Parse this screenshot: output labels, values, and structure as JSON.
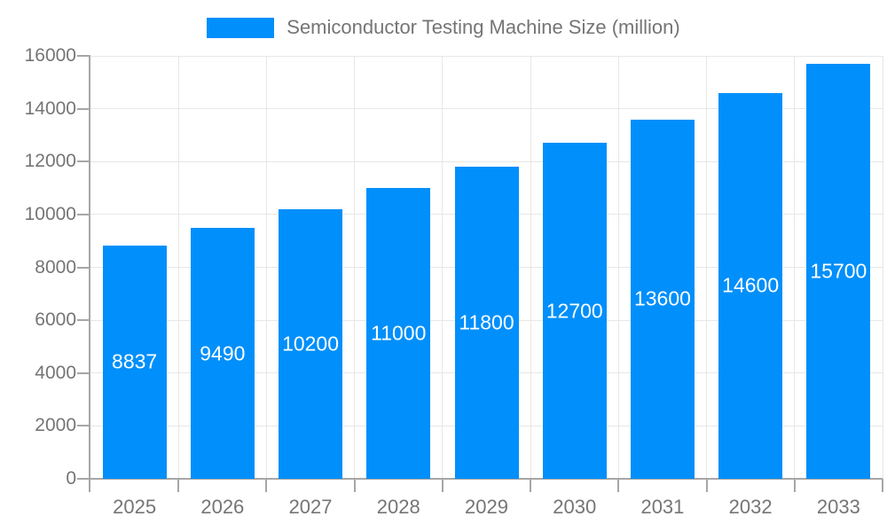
{
  "legend": {
    "label": "Semiconductor Testing Machine Size (million)"
  },
  "chart_data": {
    "type": "bar",
    "title": "Semiconductor Testing Machine Size (million)",
    "categories": [
      "2025",
      "2026",
      "2027",
      "2028",
      "2029",
      "2030",
      "2031",
      "2032",
      "2033"
    ],
    "values": [
      8837,
      9490,
      10200,
      11000,
      11800,
      12700,
      13600,
      14600,
      15700
    ],
    "value_labels": [
      "8837",
      "9490",
      "10200",
      "11000",
      "11800",
      "12700",
      "13600",
      "14600",
      "15700"
    ],
    "xlabel": "",
    "ylabel": "",
    "ylim": [
      0,
      16000
    ],
    "ytick_step": 2000,
    "ytick_labels": [
      "0",
      "2000",
      "4000",
      "6000",
      "8000",
      "10000",
      "12000",
      "14000",
      "16000"
    ],
    "grid": true,
    "legend_position": "top",
    "value_label_position": "inside-center"
  },
  "colors": {
    "bar": "#008FFB",
    "grid": "#e7e7e7",
    "axis": "#a6a6a6",
    "text": "#757575",
    "value_label": "#ffffff",
    "background": "#ffffff"
  }
}
